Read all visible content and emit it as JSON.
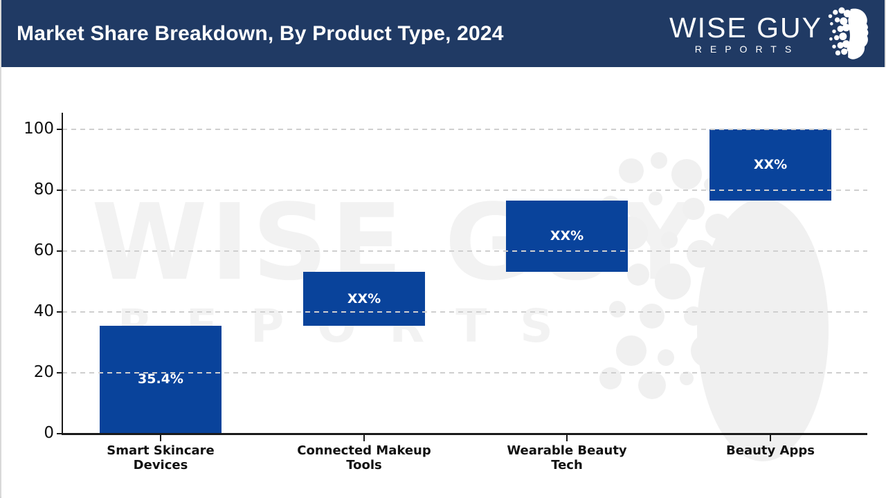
{
  "header": {
    "title": "Market Share Breakdown, By Product Type, 2024",
    "logo": {
      "wordmark": "WISE GUY",
      "subtext": "REPORTS"
    }
  },
  "watermark": {
    "wordmark": "WISE GUY",
    "subtext": "REPORTS"
  },
  "colors": {
    "header_bg": "#203a64",
    "bar": "#09439b",
    "bar_label": "#ffffff",
    "grid": "#cfcfcf",
    "axis": "#1a1a1a",
    "watermark": "#f2f2f2"
  },
  "chart_data": {
    "type": "bar",
    "subtype": "waterfall-floating-bars",
    "title": "Market Share Breakdown, By Product Type, 2024",
    "categories": [
      "Smart Skincare Devices",
      "Connected Makeup Tools",
      "Wearable Beauty Tech",
      "Beauty Apps"
    ],
    "category_label_lines": [
      [
        "Smart Skincare",
        "Devices"
      ],
      [
        "Connected Makeup",
        "Tools"
      ],
      [
        "Wearable Beauty",
        "Tech"
      ],
      [
        "Beauty Apps"
      ]
    ],
    "segments": [
      {
        "category": "Smart Skincare Devices",
        "start": 0,
        "end": 35.4,
        "label": "35.4%"
      },
      {
        "category": "Connected Makeup Tools",
        "start": 35.4,
        "end": 53.2,
        "label": "XX%"
      },
      {
        "category": "Wearable Beauty Tech",
        "start": 53.2,
        "end": 76.6,
        "label": "XX%"
      },
      {
        "category": "Beauty Apps",
        "start": 76.6,
        "end": 100,
        "label": "XX%"
      }
    ],
    "ylim": [
      0,
      100
    ],
    "yticks": [
      0,
      20,
      40,
      60,
      80,
      100
    ],
    "xlabel": "",
    "ylabel": "",
    "grid": true,
    "gridline_style": "dashed",
    "legend": false
  }
}
